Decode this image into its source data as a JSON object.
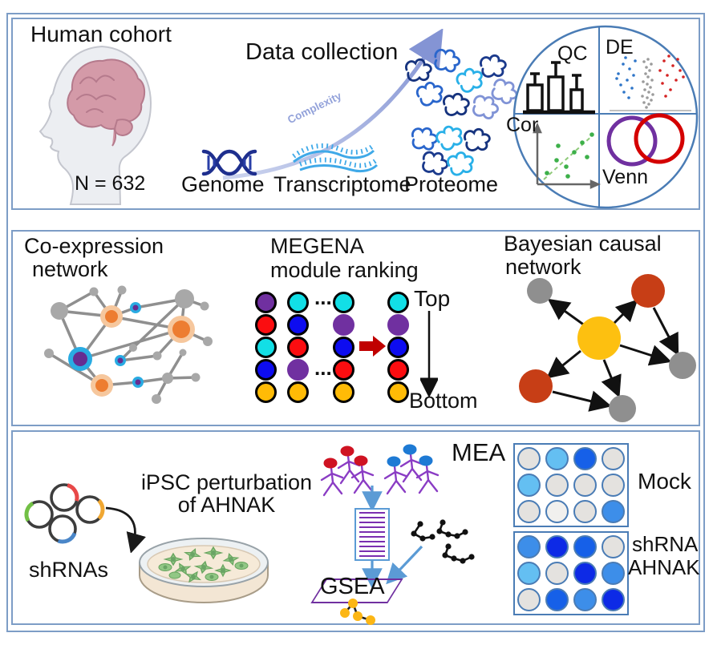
{
  "panels": {
    "top": {
      "cohort_title": "Human cohort",
      "cohort_n": "N = 632",
      "collection_title": "Data collection",
      "complexity_label": "Complexity",
      "omics": {
        "genome": "Genome",
        "transcriptome": "Transcriptome",
        "proteome": "Proteome"
      },
      "wheel": {
        "qc": "QC",
        "de": "DE",
        "cor": "Cor",
        "venn": "Venn"
      }
    },
    "middle": {
      "coexpression": {
        "line1": "Co-expression",
        "line2": "network"
      },
      "megena": {
        "line1": "MEGENA",
        "line2": "module ranking",
        "ellipsis": "...",
        "top": "Top",
        "bottom": "Bottom"
      },
      "bayesian": {
        "line1": "Bayesian causal",
        "line2": "network"
      },
      "module_ranking": {
        "colors": {
          "purple": "#7030a0",
          "red": "#fb0d10",
          "cyan": "#12dfe6",
          "blue": "#0d0cf0",
          "orange": "#ffbb06"
        },
        "columns": [
          [
            {
              "c": "purple",
              "o": true
            },
            {
              "c": "red",
              "o": true
            },
            {
              "c": "cyan",
              "o": true
            },
            {
              "c": "blue",
              "o": true
            },
            {
              "c": "orange",
              "o": true
            }
          ],
          [
            {
              "c": "cyan",
              "o": true
            },
            {
              "c": "blue",
              "o": true
            },
            {
              "c": "red",
              "o": true
            },
            {
              "c": "purple",
              "o": false
            },
            {
              "c": "orange",
              "o": true
            }
          ],
          [
            {
              "c": "cyan",
              "o": true
            },
            {
              "c": "purple",
              "o": false
            },
            {
              "c": "blue",
              "o": true
            },
            {
              "c": "red",
              "o": true
            },
            {
              "c": "orange",
              "o": true
            }
          ],
          [
            {
              "c": "cyan",
              "o": true
            },
            {
              "c": "purple",
              "o": false
            },
            {
              "c": "blue",
              "o": true
            },
            {
              "c": "red",
              "o": true
            },
            {
              "c": "orange",
              "o": true
            }
          ]
        ]
      }
    },
    "bottom": {
      "shrnas_label": "shRNAs",
      "ipsc": {
        "line1": "iPSC perturbation",
        "line2": "of AHNAK"
      },
      "gsea_label": "GSEA",
      "mea": {
        "title": "MEA",
        "mock_label": "Mock",
        "shrna_label_line1": "shRNA",
        "shrna_label_line2": "AHNAK",
        "well_colors": {
          "gray": "#e4e2df",
          "pale": "#f1f0ee",
          "sky": "#64bff2",
          "mid": "#3d8ee9",
          "vivid": "#1660e8",
          "deep": "#0d2ae6"
        },
        "plates": {
          "mock": [
            [
              "gray",
              "sky",
              "vivid",
              "gray"
            ],
            [
              "sky",
              "gray",
              "gray",
              "gray"
            ],
            [
              "gray",
              "pale",
              "gray",
              "mid"
            ]
          ],
          "shrna": [
            [
              "mid",
              "deep",
              "vivid",
              "gray"
            ],
            [
              "sky",
              "gray",
              "deep",
              "mid"
            ],
            [
              "gray",
              "vivid",
              "mid",
              "deep"
            ]
          ]
        }
      }
    }
  },
  "colors": {
    "panel_border": "#7d9dc6",
    "box_border": "#4a7cb5",
    "arrow_blue": "#5b9bd5",
    "complexity_arrow": "#8d9dd8",
    "gsea_purple": "#7030a0",
    "megena_arrow_red": "#c00000",
    "bayesian_yellow": "#fdc010",
    "bayesian_red": "#c73e16",
    "node_gray": "#a8a8a8",
    "coexpr_orange": "#ed7d31",
    "coexpr_halo": "#f6c79d",
    "coexpr_blue": "#29abe2",
    "coexpr_purple": "#662d91"
  },
  "icons": [
    "human-head-brain-icon",
    "complexity-arrow-icon",
    "dna-icon",
    "rna-icon",
    "protein-icon",
    "boxplot-icon",
    "volcano-plot-icon",
    "scatter-plot-icon",
    "venn-diagram-icon",
    "coexpression-network-icon",
    "module-ranking-arrow-icon",
    "top-bottom-arrow-icon",
    "bayesian-network-icon",
    "plasmid-icon",
    "curved-arrow-icon",
    "petri-dish-icon",
    "stick-figure-icon",
    "down-arrow-icon",
    "gene-list-icon",
    "molecule-network-icon",
    "gsea-parallelogram-icon",
    "gene-cluster-icon",
    "mea-plate-icon"
  ]
}
